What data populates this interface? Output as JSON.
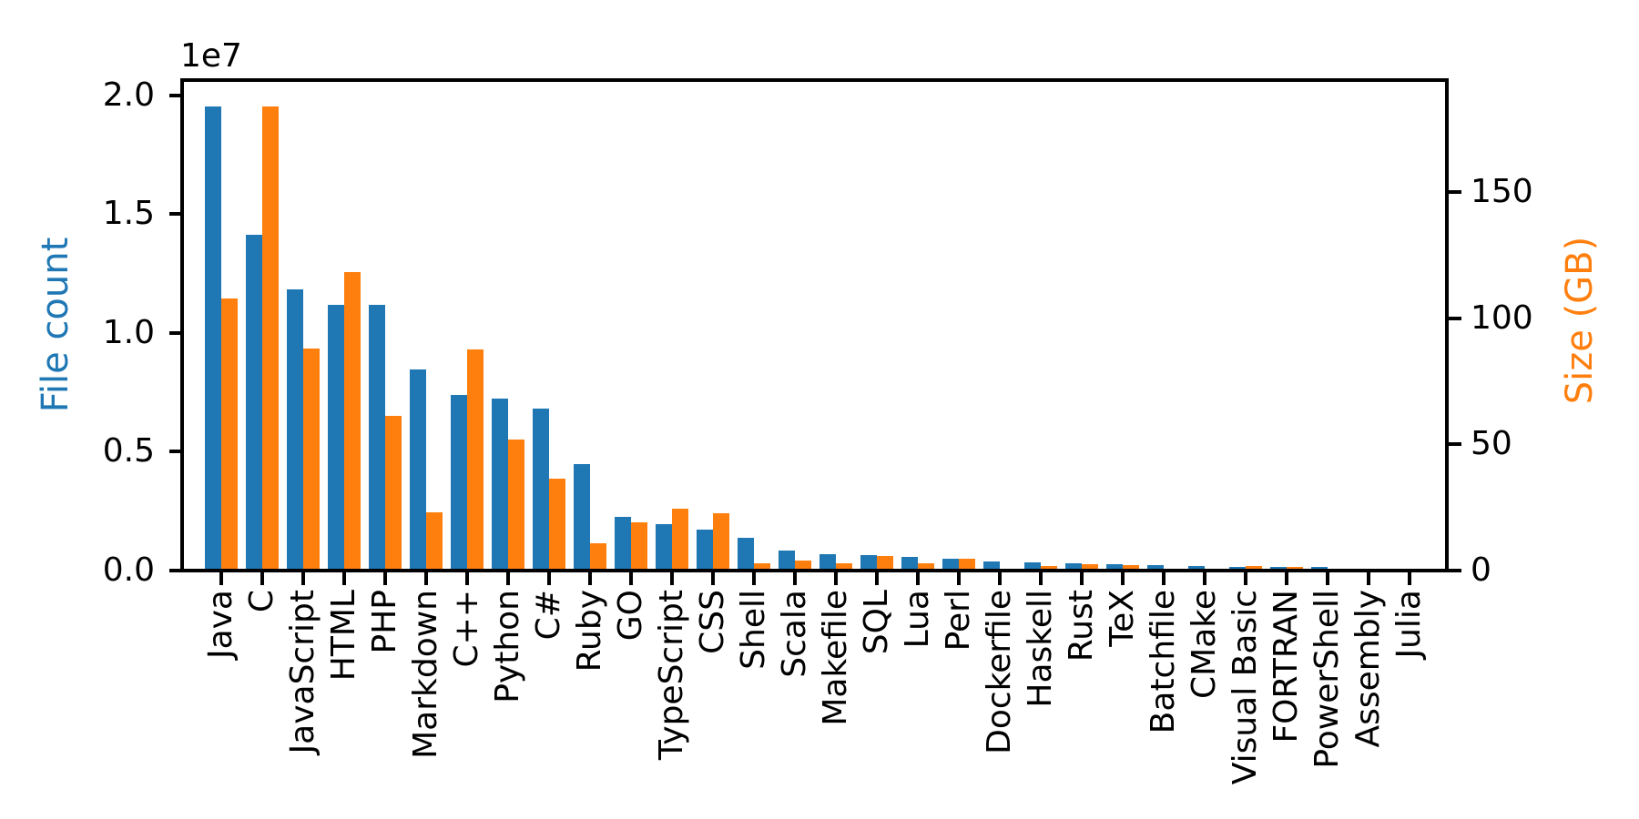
{
  "chart_data": {
    "type": "bar",
    "title": "",
    "categories": [
      "Java",
      "C",
      "JavaScript",
      "HTML",
      "PHP",
      "Markdown",
      "C++",
      "Python",
      "C#",
      "Ruby",
      "GO",
      "TypeScript",
      "CSS",
      "Shell",
      "Scala",
      "Makefile",
      "SQL",
      "Lua",
      "Perl",
      "Dockerfile",
      "Haskell",
      "Rust",
      "TeX",
      "Batchfile",
      "CMake",
      "Visual Basic",
      "FORTRAN",
      "PowerShell",
      "Assembly",
      "Julia"
    ],
    "series": [
      {
        "name": "File count",
        "axis": "left",
        "color": "#1f77b4",
        "values": [
          19548190,
          14143113,
          11839883,
          11178557,
          11177610,
          8464626,
          7380520,
          7226626,
          6811652,
          4473331,
          2265436,
          1940406,
          1734406,
          1385648,
          835755,
          679430,
          656671,
          578554,
          497949,
          366505,
          340623,
          322431,
          251015,
          236945,
          175282,
          155652,
          142038,
          136846,
          82905,
          58317
        ]
      },
      {
        "name": "Size (GB)",
        "axis": "right",
        "color": "#ff7f0e",
        "values": [
          107.7,
          183.83,
          87.82,
          118.12,
          61.41,
          23.09,
          87.73,
          52.03,
          36.36,
          10.95,
          19.28,
          24.59,
          22.67,
          3.01,
          3.87,
          2.92,
          5.67,
          2.81,
          4.7,
          0.71,
          1.85,
          2.68,
          2.15,
          0.7,
          0.54,
          1.91,
          1.62,
          0.69,
          0.78,
          0.29
        ]
      }
    ],
    "left_axis": {
      "label": "File count",
      "color": "#1f77b4",
      "offset_label": "1e7",
      "tick_labels": [
        "0.0",
        "0.5",
        "1.0",
        "1.5",
        "2.0"
      ],
      "tick_values": [
        0,
        5000000,
        10000000,
        15000000,
        20000000
      ],
      "range": [
        0,
        20650000
      ]
    },
    "right_axis": {
      "label": "Size (GB)",
      "color": "#ff7f0e",
      "tick_labels": [
        "0",
        "50",
        "100",
        "150"
      ],
      "tick_values": [
        0,
        50,
        100,
        150
      ],
      "range": [
        0,
        194.3
      ]
    },
    "legend_position": "none",
    "grid": false
  }
}
